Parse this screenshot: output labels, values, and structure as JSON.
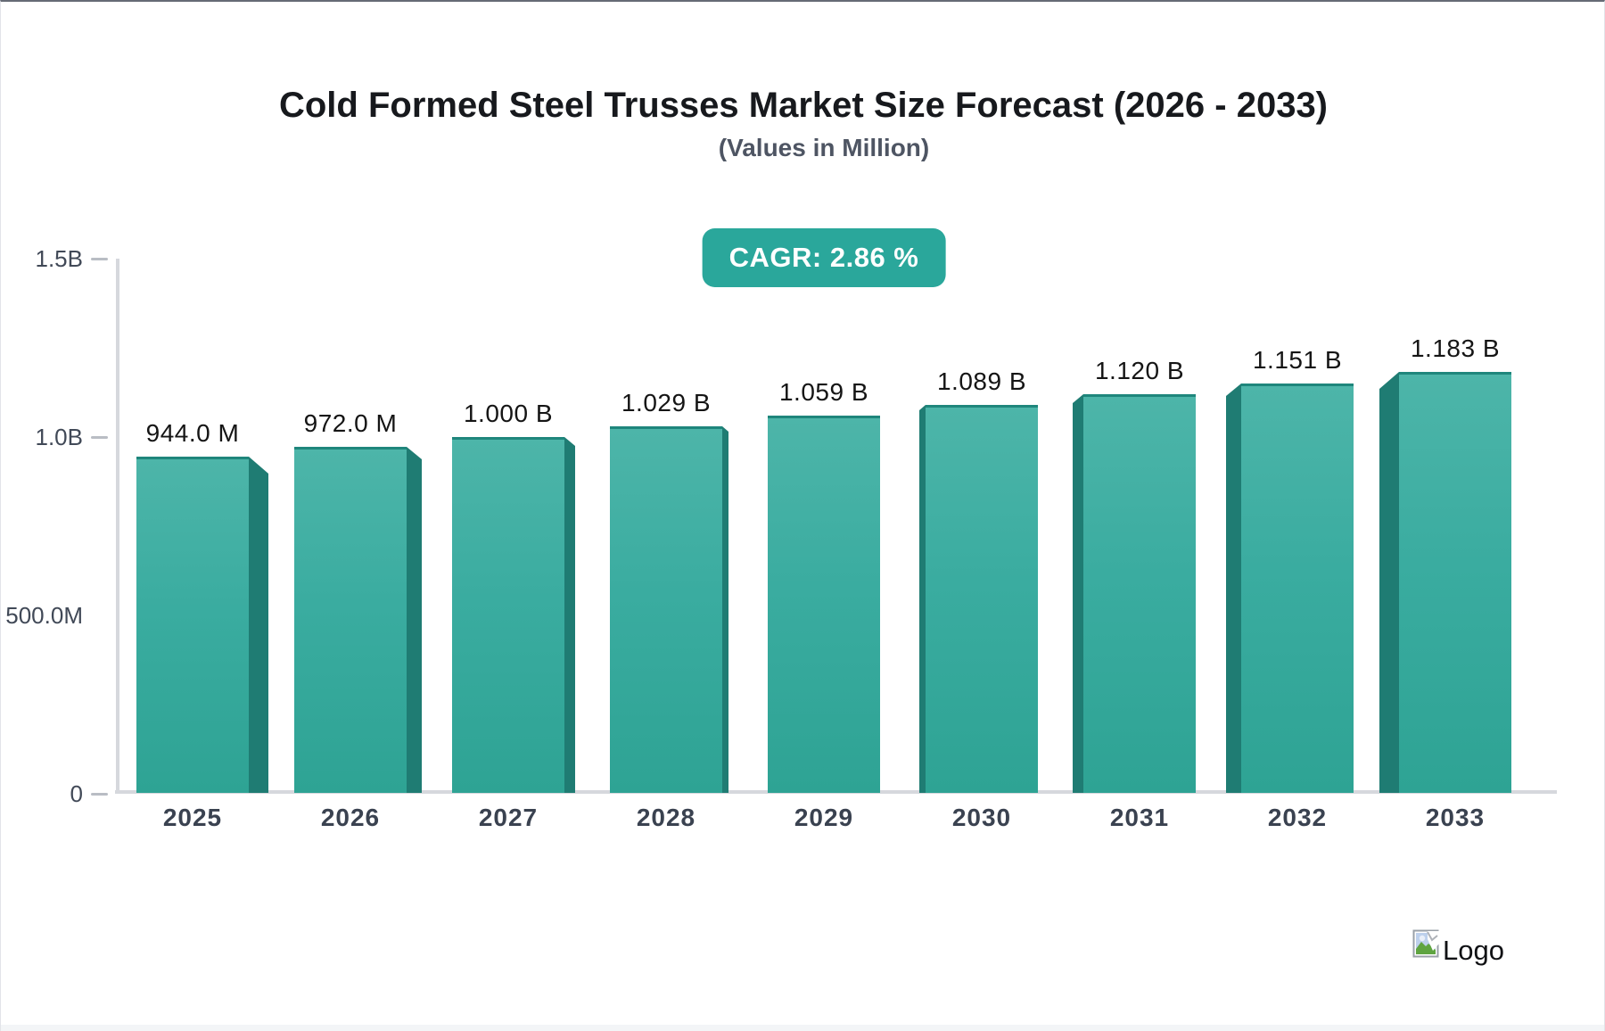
{
  "header": {
    "title": "Cold Formed Steel Trusses Market Size Forecast (2026 - 2033)",
    "subtitle": "(Values in Million)"
  },
  "badge": {
    "label": "CAGR: 2.86 %",
    "bg_color": "#2aa79b",
    "text_color": "#ffffff"
  },
  "chart_data": {
    "type": "bar",
    "title": "Cold Formed Steel Trusses Market Size Forecast (2026 - 2033)",
    "subtitle": "(Values in Million)",
    "categories": [
      "2025",
      "2026",
      "2027",
      "2028",
      "2029",
      "2030",
      "2031",
      "2032",
      "2033"
    ],
    "values_billion": [
      0.944,
      0.972,
      1.0,
      1.029,
      1.059,
      1.089,
      1.12,
      1.151,
      1.183
    ],
    "value_labels": [
      "944.0 M",
      "972.0 M",
      "1.000 B",
      "1.029 B",
      "1.059 B",
      "1.089 B",
      "1.120 B",
      "1.151 B",
      "1.183 B"
    ],
    "ylim_billion": [
      0,
      1.5
    ],
    "yticks": [
      {
        "label": "1.5B",
        "value_billion": 1.5,
        "show_dash": true
      },
      {
        "label": "1.0B",
        "value_billion": 1.0,
        "show_dash": true
      },
      {
        "label": "500.0M",
        "value_billion": 0.5,
        "show_dash": false
      },
      {
        "label": "0",
        "value_billion": 0.0,
        "show_dash": true
      }
    ],
    "grid": "off",
    "legend": "none",
    "style_3d": "center-vanishing-point",
    "colors": {
      "bar_face_top": "#4db5a9",
      "bar_face_mid": "#3aaca0",
      "bar_face_bottom": "#2ea394",
      "bar_top_edge": "#1f867c",
      "bar_side_face": "#1f7c73",
      "axis_line": "#d6d8dd",
      "tick": "#b9bdc4",
      "axis_text": "#414957",
      "value_text": "#151515"
    }
  },
  "logo": {
    "icon": "broken-image-icon",
    "alt_text": "Logo"
  }
}
